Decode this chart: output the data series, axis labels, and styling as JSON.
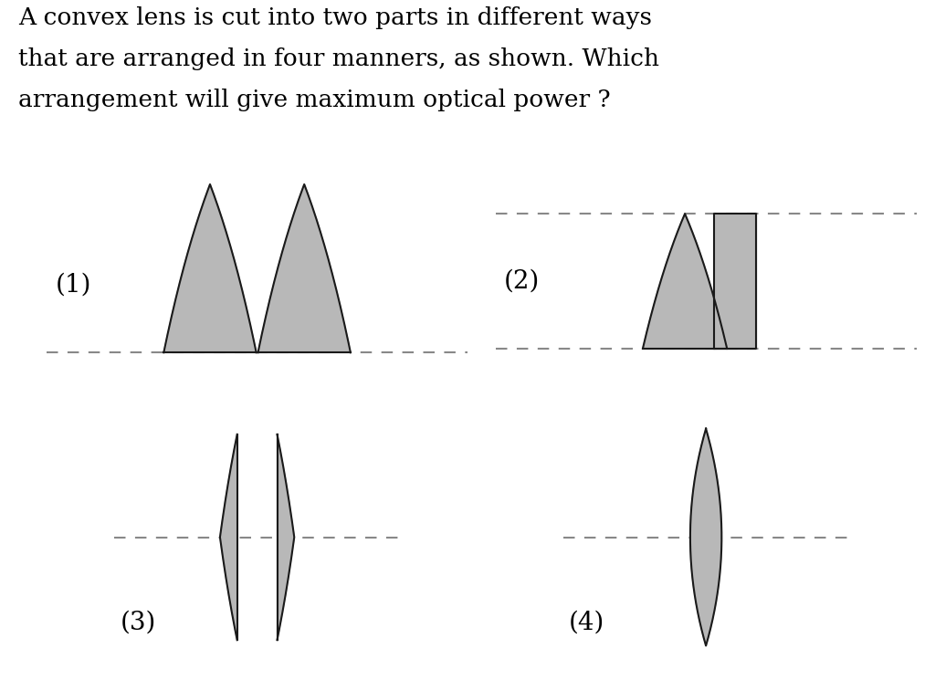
{
  "title_line1": "A convex lens is cut into two parts in different ways",
  "title_line2": "that are arranged in four manners, as shown. Which",
  "title_line3": "arrangement will give maximum optical power ?",
  "title_fontsize": 19,
  "background_color": "#ffffff",
  "label_color": "#000000",
  "lens_fill": "#b8b8b8",
  "lens_edge": "#1a1a1a",
  "dashed_color": "#888888",
  "label_fontsize": 20,
  "arrangements": [
    "(1)",
    "(2)",
    "(3)",
    "(4)"
  ]
}
